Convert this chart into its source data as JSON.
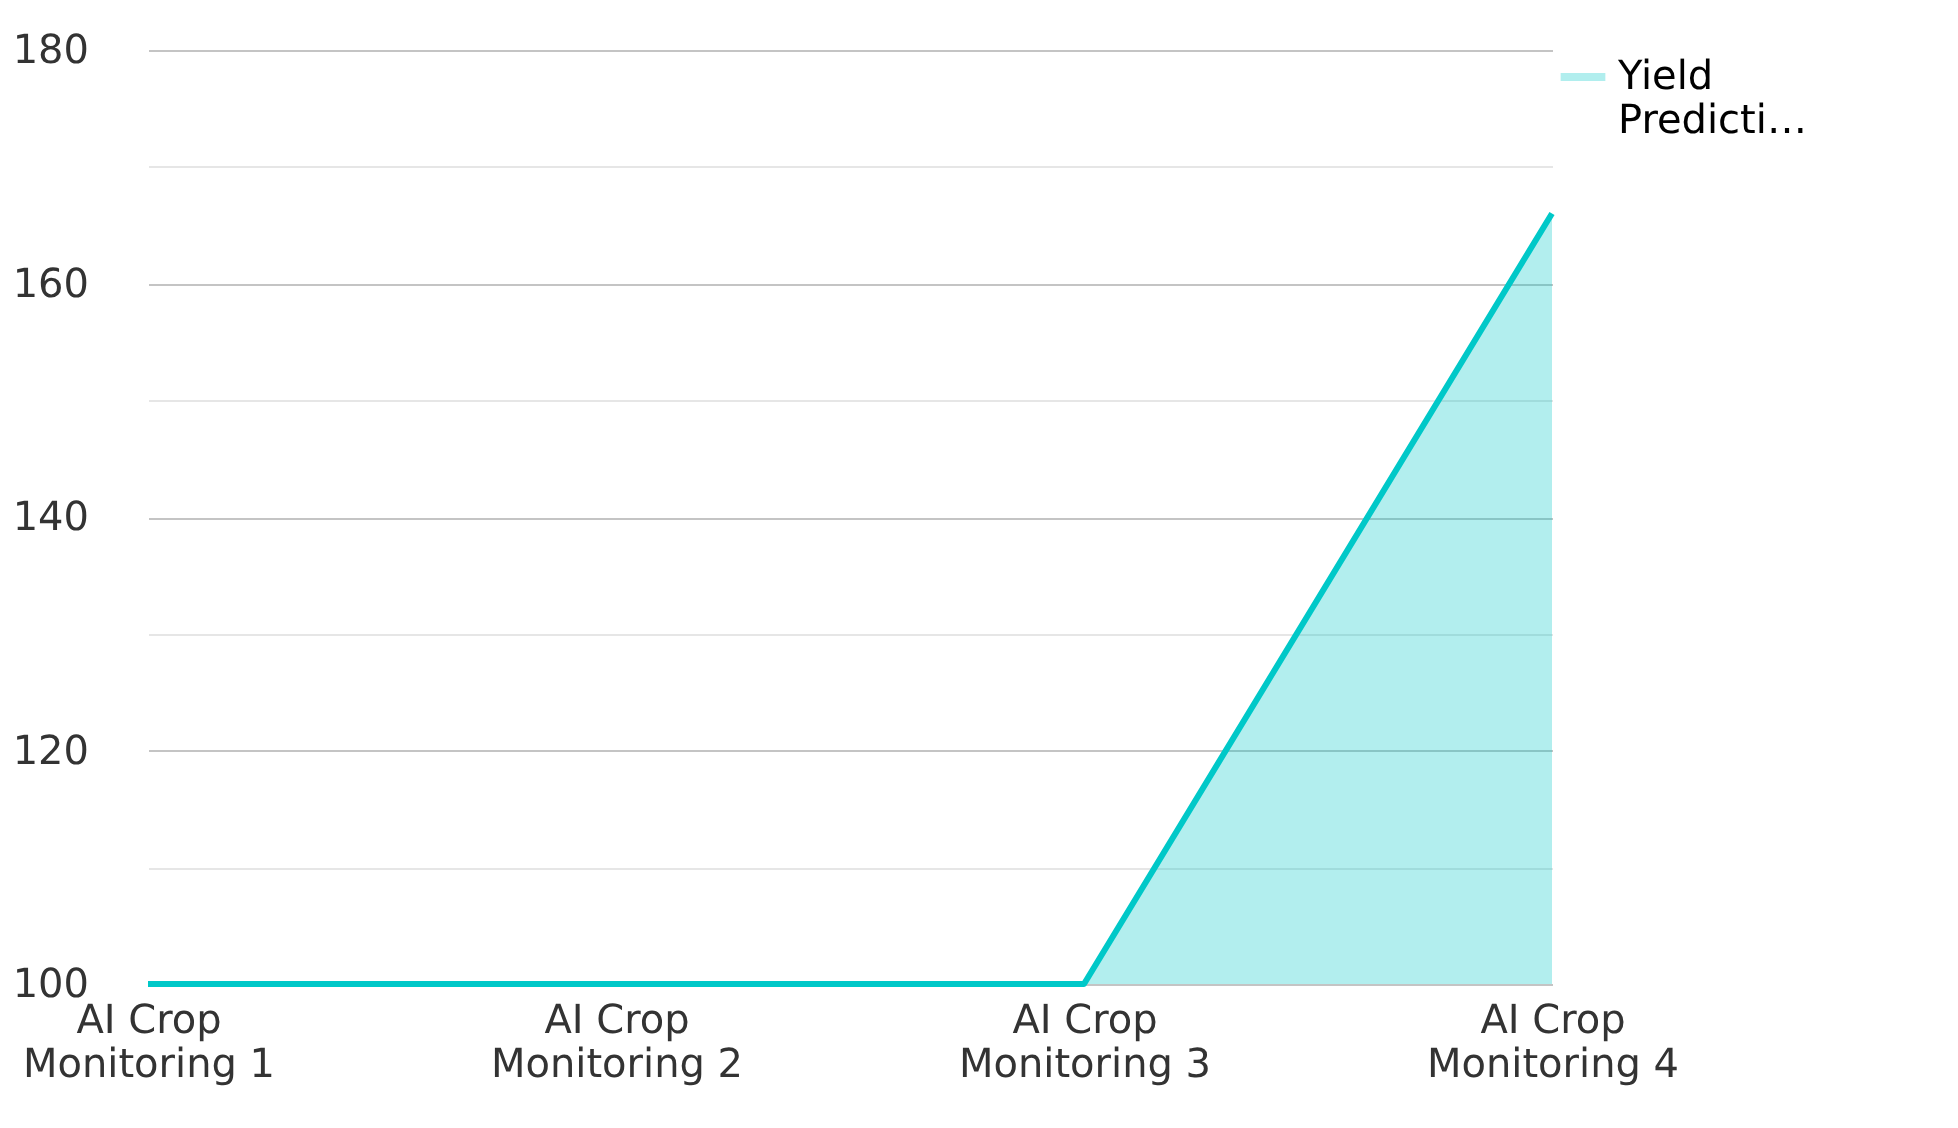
{
  "chart_data": {
    "type": "area",
    "categories": [
      "AI Crop Monitoring 1",
      "AI Crop Monitoring 2",
      "AI Crop Monitoring 3",
      "AI Crop Monitoring 4"
    ],
    "series": [
      {
        "name": "Yield Predicti…",
        "color": "#00c8c8",
        "values": [
          100,
          100,
          100,
          166
        ]
      }
    ],
    "ylim": [
      100,
      180
    ],
    "yticks": [
      100,
      {
        "value": 110,
        "label": null
      },
      120,
      {
        "value": 130,
        "label": null
      },
      140,
      {
        "value": 150,
        "label": null
      },
      160,
      {
        "value": 170,
        "label": null
      },
      180
    ],
    "grid": "y",
    "legend": "top right",
    "marker": "none",
    "line_style": "solid"
  }
}
